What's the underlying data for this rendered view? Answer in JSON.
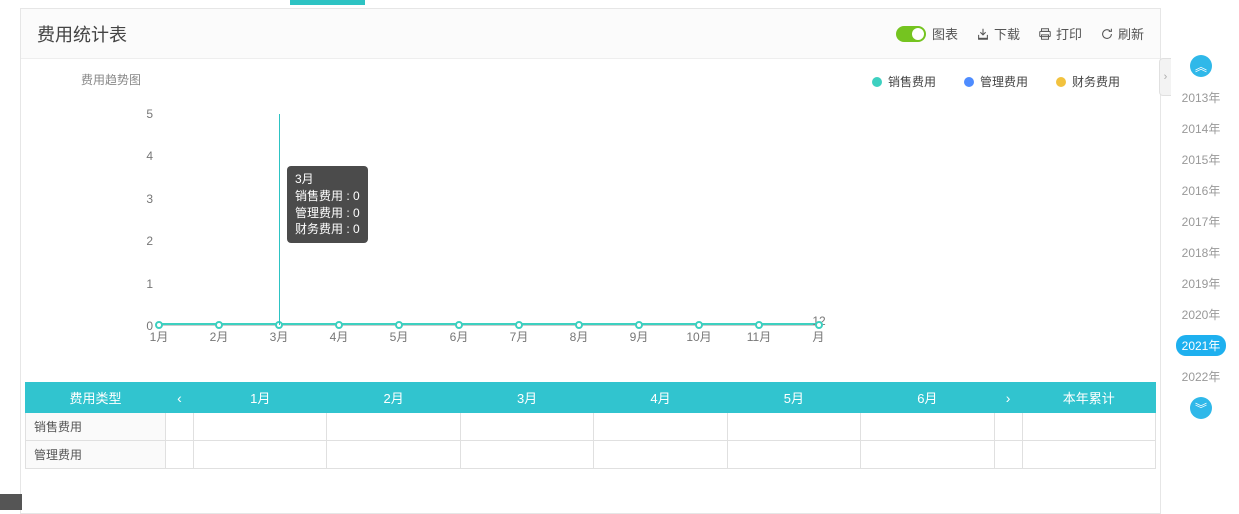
{
  "header": {
    "title": "费用统计表",
    "toggle_label": "图表",
    "download_label": "下载",
    "print_label": "打印",
    "refresh_label": "刷新"
  },
  "chart": {
    "type": "line",
    "title": "费用趋势图",
    "background_color": "#ffffff",
    "ylim": [
      0,
      5
    ],
    "ytick_step": 1,
    "yticks": [
      0,
      1,
      2,
      3,
      4,
      5
    ],
    "axis_color": "#cccccc",
    "tick_label_color": "#888888",
    "tick_fontsize": 12,
    "x_labels": [
      "1月",
      "2月",
      "3月",
      "4月",
      "5月",
      "6月",
      "7月",
      "8月",
      "9月",
      "10月",
      "11月",
      "12月"
    ],
    "series": [
      {
        "name": "销售费用",
        "color": "#3dd0c0",
        "values": [
          0,
          0,
          0,
          0,
          0,
          0,
          0,
          0,
          0,
          0,
          0,
          0
        ],
        "marker": "circle-open"
      },
      {
        "name": "管理费用",
        "color": "#4e8cff",
        "values": [
          0,
          0,
          0,
          0,
          0,
          0,
          0,
          0,
          0,
          0,
          0,
          0
        ],
        "marker": "circle"
      },
      {
        "name": "财务费用",
        "color": "#f2c23e",
        "values": [
          0,
          0,
          0,
          0,
          0,
          0,
          0,
          0,
          0,
          0,
          0,
          0
        ],
        "marker": "circle"
      }
    ],
    "hover_index": 2,
    "hover_line_color": "#2dc3c3",
    "hover_line_width": 1.5,
    "tooltip": {
      "title": "3月",
      "lines": [
        "销售费用 : 0",
        "管理费用 : 0",
        "财务费用 : 0"
      ],
      "background": "rgba(60,60,60,0.92)",
      "text_color": "#ffffff",
      "fontsize": 12
    }
  },
  "table": {
    "header_bg": "#31c4cf",
    "header_fg": "#ffffff",
    "first_col_label": "费用类型",
    "columns_visible": [
      "1月",
      "2月",
      "3月",
      "4月",
      "5月",
      "6月"
    ],
    "total_col_label": "本年累计",
    "nav_prev": "‹",
    "nav_next": "›",
    "rows": [
      {
        "label": "销售费用",
        "cells": [
          "",
          "",
          "",
          "",
          "",
          ""
        ],
        "total": ""
      },
      {
        "label": "管理费用",
        "cells": [
          "",
          "",
          "",
          "",
          "",
          ""
        ],
        "total": ""
      }
    ]
  },
  "year_rail": {
    "up_icon": "︽",
    "down_icon": "︾",
    "rail_btn_bg": "#2fb8e9",
    "years": [
      "2013年",
      "2014年",
      "2015年",
      "2016年",
      "2017年",
      "2018年",
      "2019年",
      "2020年",
      "2021年",
      "2022年"
    ],
    "active_year": "2021年",
    "active_bg": "#1eb0ef"
  }
}
